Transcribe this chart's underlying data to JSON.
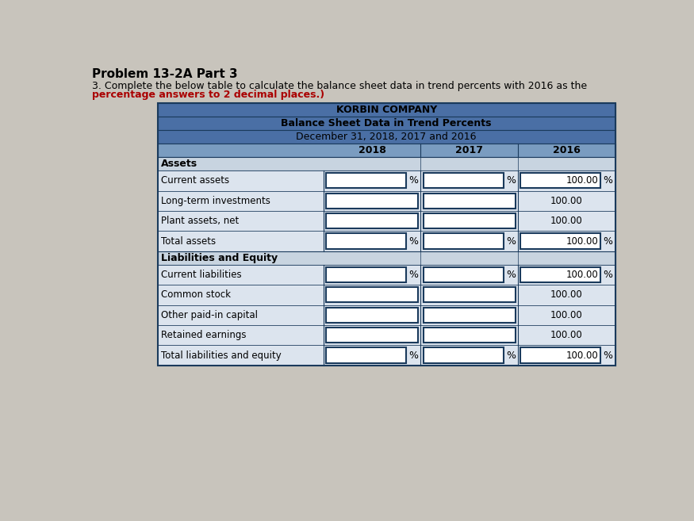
{
  "title_main": "Problem 13-2A Part 3",
  "instruction_line1": "3. Complete the below table to calculate the balance sheet data in trend percents with 2016 as the",
  "instruction_line2": "percentage answers to 2 decimal places.)",
  "table_title1": "KORBIN COMPANY",
  "table_title2": "Balance Sheet Data in Trend Percents",
  "table_title3": "December 31, 2018, 2017 and 2016",
  "col_headers": [
    "2018",
    "2017",
    "2016"
  ],
  "section1_header": "Assets",
  "section2_header": "Liabilities and Equity",
  "rows_assets": [
    {
      "label": "Current assets",
      "2016": "100.00",
      "pct_2018": true,
      "pct_2017": true,
      "pct_2016": true
    },
    {
      "label": "Long-term investments",
      "2016": "100.00",
      "pct_2018": false,
      "pct_2017": false,
      "pct_2016": false
    },
    {
      "label": "Plant assets, net",
      "2016": "100.00",
      "pct_2018": false,
      "pct_2017": false,
      "pct_2016": false
    },
    {
      "label": "Total assets",
      "2016": "100.00",
      "pct_2018": true,
      "pct_2017": true,
      "pct_2016": true
    }
  ],
  "rows_liabilities": [
    {
      "label": "Current liabilities",
      "2016": "100.00",
      "pct_2018": true,
      "pct_2017": true,
      "pct_2016": true
    },
    {
      "label": "Common stock",
      "2016": "100.00",
      "pct_2018": false,
      "pct_2017": false,
      "pct_2016": false
    },
    {
      "label": "Other paid-in capital",
      "2016": "100.00",
      "pct_2018": false,
      "pct_2017": false,
      "pct_2016": false
    },
    {
      "label": "Retained earnings",
      "2016": "100.00",
      "pct_2018": false,
      "pct_2017": false,
      "pct_2016": false
    },
    {
      "label": "Total liabilities and equity",
      "2016": "100.00",
      "pct_2018": true,
      "pct_2017": true,
      "pct_2016": true
    }
  ],
  "bg_page": "#c8c4bc",
  "header_bg": "#4a6fa5",
  "subheader_bg": "#4a6fa5",
  "year_header_bg": "#7a9cc0",
  "section_header_bg": "#c8d4e0",
  "row_bg_even": "#dce4ee",
  "row_bg_odd": "#dce4ee",
  "input_box_bg": "#ffffff",
  "border_color": "#1a3a5c",
  "text_dark": "#000000",
  "text_red": "#aa0000",
  "text_white": "#ffffff"
}
